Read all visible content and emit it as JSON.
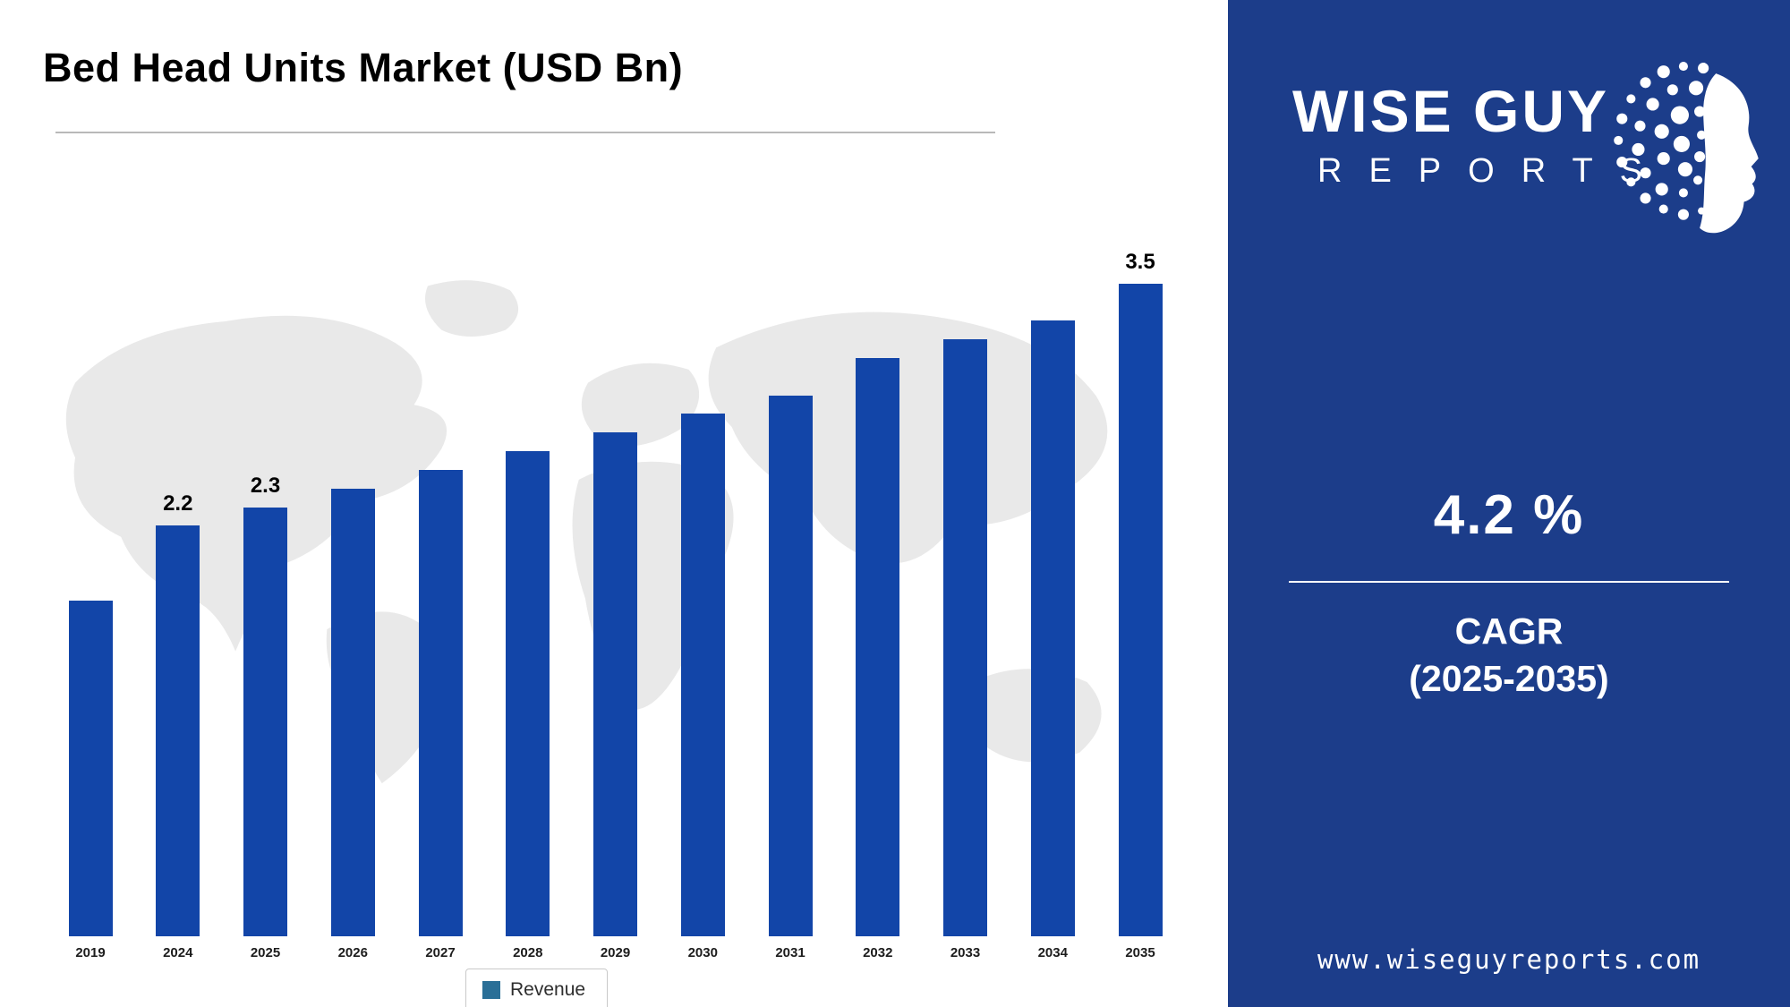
{
  "page": {
    "title": "Bed Head Units Market (USD Bn)"
  },
  "chart_data": {
    "type": "bar",
    "title": "Bed Head Units Market (USD Bn)",
    "categories": [
      "2019",
      "2024",
      "2025",
      "2026",
      "2027",
      "2028",
      "2029",
      "2030",
      "2031",
      "2032",
      "2033",
      "2034",
      "2035"
    ],
    "series": [
      {
        "name": "Revenue",
        "values": [
          1.8,
          2.2,
          2.3,
          2.4,
          2.5,
          2.6,
          2.7,
          2.8,
          2.9,
          3.1,
          3.2,
          3.3,
          3.5
        ]
      }
    ],
    "data_labels": [
      "",
      "2.2",
      "2.3",
      "",
      "",
      "",
      "",
      "",
      "",
      "",
      "",
      "",
      "3.5"
    ],
    "xlabel": "",
    "ylabel": "",
    "ylim": [
      0,
      3.8
    ],
    "grid": false,
    "bar_color": "#1245a8",
    "legend": {
      "position": "bottom",
      "items": [
        {
          "label": "Revenue",
          "color": "#2a6f97"
        }
      ]
    },
    "background_map_color": "#e9e9e9"
  },
  "sidebar": {
    "background_color": "#1c3d8a",
    "logo": {
      "line1": "WISE GUY",
      "line2": "REPORTS"
    },
    "cagr_value": "4.2 %",
    "cagr_label_line1": "CAGR",
    "cagr_label_line2": "(2025-2035)",
    "website": "www.wiseguyreports.com"
  }
}
